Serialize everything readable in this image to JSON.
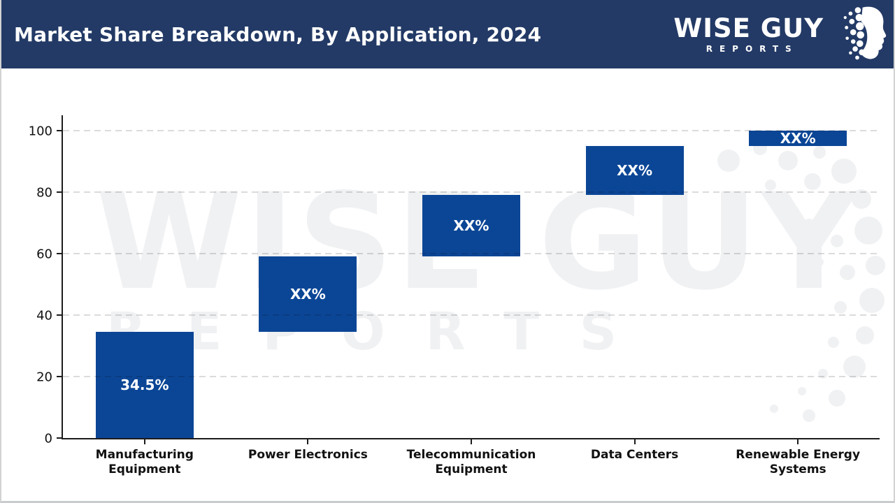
{
  "header": {
    "title": "Market Share Breakdown, By Application, 2024",
    "bg_color": "#233a66",
    "logo": {
      "line1": "WISE GUY",
      "line2": "REPORTS"
    }
  },
  "watermark": {
    "line1": "WISE GUY",
    "line2": "REPORTS"
  },
  "chart_data": {
    "type": "bar",
    "subtype": "waterfall",
    "title": "Market Share Breakdown, By Application, 2024",
    "categories": [
      [
        "Manufacturing",
        "Equipment"
      ],
      [
        "Power Electronics"
      ],
      [
        "Telecommunication",
        "Equipment"
      ],
      [
        "Data Centers"
      ],
      [
        "Renewable Energy",
        "Systems"
      ]
    ],
    "segments": [
      {
        "start": 0,
        "end": 34.5,
        "label": "34.5%"
      },
      {
        "start": 34.5,
        "end": 59,
        "label": "XX%"
      },
      {
        "start": 59,
        "end": 79,
        "label": "XX%"
      },
      {
        "start": 79,
        "end": 95,
        "label": "XX%"
      },
      {
        "start": 95,
        "end": 100,
        "label": "XX%"
      }
    ],
    "yticks": [
      0,
      20,
      40,
      60,
      80,
      100
    ],
    "ylim": [
      0,
      105
    ],
    "bar_color": "#0b4696",
    "bar_label_color": "#ffffff",
    "grid": true,
    "grid_style": "dashed",
    "legend": false
  }
}
